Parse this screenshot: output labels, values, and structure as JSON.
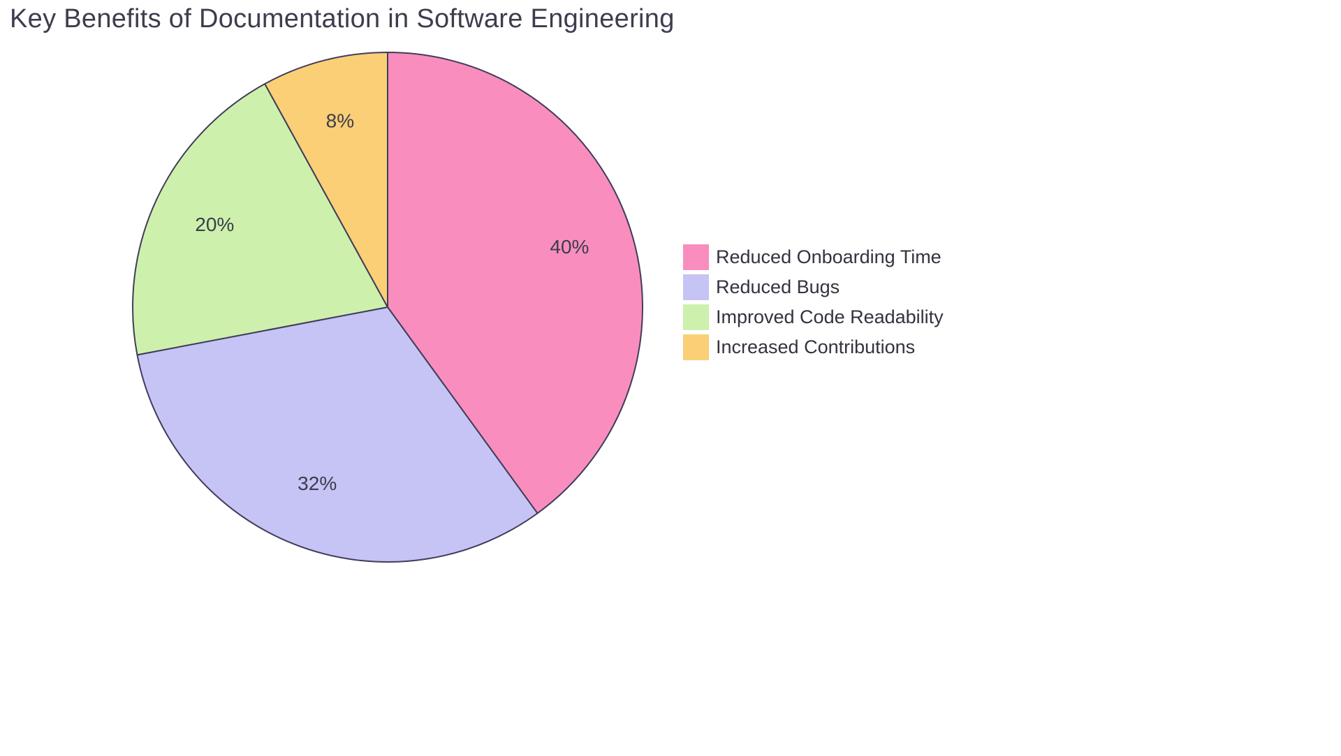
{
  "chart_data": {
    "type": "pie",
    "title": "Key Benefits of Documentation in Software Engineering",
    "labels": [
      "Reduced Onboarding Time",
      "Reduced Bugs",
      "Improved Code Readability",
      "Increased Contributions"
    ],
    "values": [
      40,
      32,
      20,
      8
    ],
    "value_labels": [
      "40%",
      "32%",
      "20%",
      "8%"
    ],
    "colors": [
      "#F98EBE",
      "#C6C3F5",
      "#CDF1AD",
      "#FACF76"
    ],
    "slice_border_color": "#403C5A",
    "slice_label_color": "#3C3C4C",
    "title_color": "#3D3D4D",
    "legend_text_color": "#33333F",
    "background_color": "#FFFFFF",
    "legend_position": "right",
    "start_angle": "top",
    "direction": "clockwise"
  }
}
